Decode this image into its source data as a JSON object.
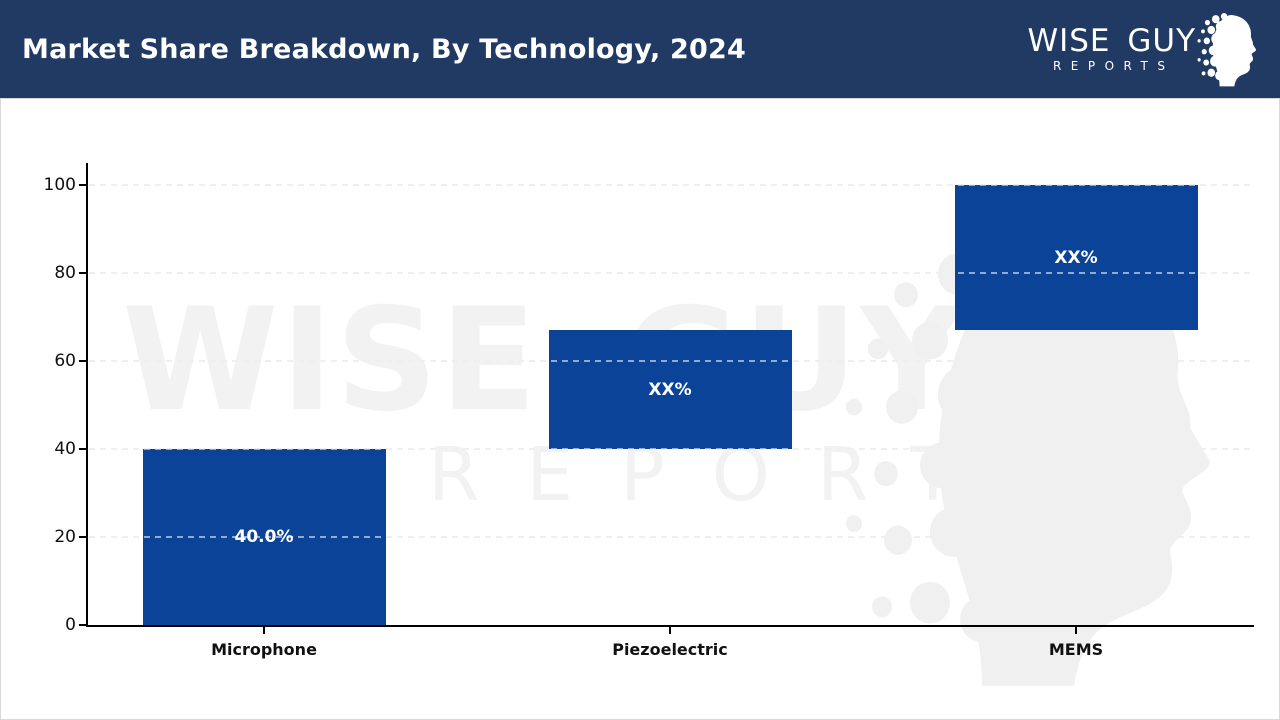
{
  "header": {
    "title": "Market Share Breakdown, By Technology, 2024",
    "logo": {
      "line1": "WISE GUY",
      "line2": "REPORTS"
    }
  },
  "watermark": {
    "line1": "WISE GUY",
    "line2": "REPORTS"
  },
  "icons": {
    "logo_face": "face-profile-dots-icon",
    "watermark_face": "face-profile-dots-icon"
  },
  "colors": {
    "header_bg": "#213a63",
    "title_text": "#ffffff",
    "logo_text": "#ffffff",
    "bar_fill": "#0b4399",
    "bar_label_text": "#ffffff",
    "gridline": "#dcdcdc",
    "gridline_over_bar": "rgba(255,255,255,0.55)",
    "axis": "#000000",
    "tick_label_text": "#111111",
    "watermark": "#f2f2f2",
    "watermark_face": "#f0f0f0",
    "frame_border": "#d9d9d9"
  },
  "chart_data": {
    "type": "bar",
    "variant": "waterfall",
    "title": "Market Share Breakdown, By Technology, 2024",
    "categories": [
      "Microphone",
      "Piezoelectric",
      "MEMS"
    ],
    "segments": [
      {
        "category": "Microphone",
        "start": 0,
        "end": 40,
        "value": 40.0,
        "label": "40.0%"
      },
      {
        "category": "Piezoelectric",
        "start": 40,
        "end": 67,
        "value": 27.0,
        "label": "XX%"
      },
      {
        "category": "MEMS",
        "start": 67,
        "end": 100,
        "value": 33.0,
        "label": "XX%"
      }
    ],
    "yticks": [
      0,
      20,
      40,
      60,
      80,
      100
    ],
    "ylim": [
      0,
      105
    ],
    "xlabel": "",
    "ylabel": "",
    "grid": "horizontal-dashed",
    "legend": "none"
  }
}
